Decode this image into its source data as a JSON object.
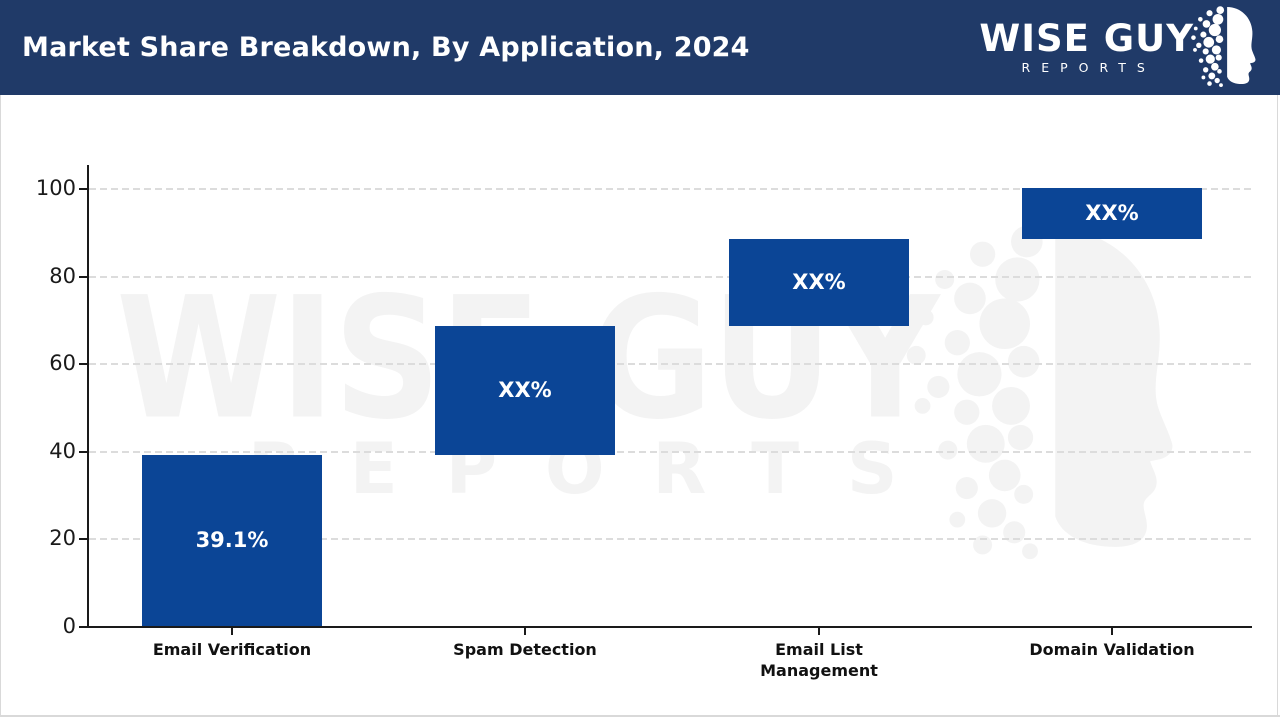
{
  "header": {
    "title": "Market Share Breakdown, By Application, 2024",
    "logo": {
      "name": "WISE GUY",
      "sub": "REPORTS"
    }
  },
  "watermark": {
    "name": "WISE GUY",
    "sub": "REPORTS"
  },
  "chart_data": {
    "type": "bar",
    "subtype": "waterfall",
    "title": "Market Share Breakdown, By Application, 2024",
    "categories": [
      "Email Verification",
      "Spam Detection",
      "Email List Management",
      "Domain Validation"
    ],
    "segments": [
      {
        "category": "Email Verification",
        "start": 0,
        "end": 39.1,
        "label": "39.1%"
      },
      {
        "category": "Spam Detection",
        "start": 39.1,
        "end": 68.5,
        "label": "XX%"
      },
      {
        "category": "Email List Management",
        "start": 68.5,
        "end": 88.4,
        "label": "XX%"
      },
      {
        "category": "Domain Validation",
        "start": 88.4,
        "end": 100,
        "label": "XX%"
      }
    ],
    "value_labels": [
      "39.1%",
      "XX%",
      "XX%",
      "XX%"
    ],
    "ylim": [
      0,
      100
    ],
    "yticks": [
      0,
      20,
      40,
      60,
      80,
      100
    ],
    "xlabel": "",
    "ylabel": "",
    "grid": "horizontal-dashed",
    "legend": "none"
  },
  "colors": {
    "header_bg": "#203a68",
    "bar_blue": "#0b4596",
    "grid": "#dcdcdc",
    "axis": "#1a1a1a",
    "watermark": "#f3f3f3",
    "value_label": "#ffffff",
    "edge": "#d9d9d9"
  }
}
